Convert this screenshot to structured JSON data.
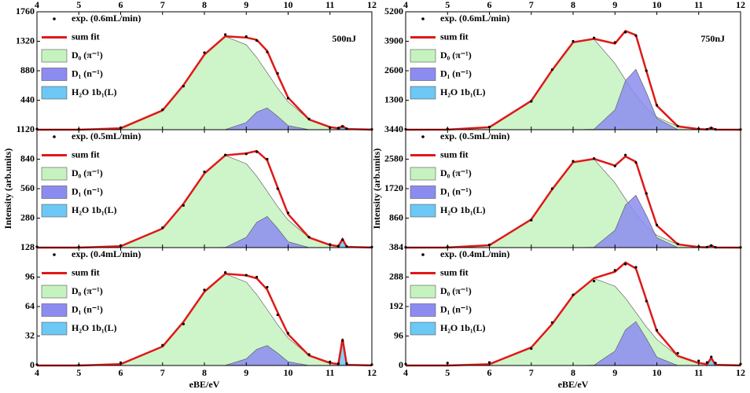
{
  "chart_data": [
    {
      "type": "spectrum",
      "annotation": "500nJ",
      "xtick_side": "top",
      "x": [
        4,
        5,
        6,
        7,
        7.5,
        8,
        8.5,
        9,
        9.25,
        9.5,
        9.75,
        10,
        10.5,
        11,
        11.2,
        11.3,
        11.4,
        12
      ],
      "xlim": [
        4,
        12
      ],
      "xticks": [
        4,
        5,
        6,
        7,
        8,
        9,
        10,
        11,
        12
      ],
      "ylim": [
        0,
        1760
      ],
      "yticks": [
        440,
        880,
        1320,
        1760
      ],
      "series": [
        {
          "name": "exp. (0.6mL/min)",
          "style": "points",
          "color": "#000000",
          "values": [
            10,
            5,
            30,
            300,
            650,
            1150,
            1420,
            1390,
            1330,
            1160,
            840,
            470,
            160,
            30,
            25,
            50,
            15,
            5
          ]
        },
        {
          "name": "sum fit",
          "style": "line",
          "color": "#e01818",
          "values": [
            0,
            0,
            21,
            288,
            664,
            1121,
            1394,
            1375,
            1342,
            1175,
            819,
            478,
            152,
            39,
            21,
            55,
            11,
            1
          ]
        },
        {
          "name": "D₀ (π⁻¹)",
          "style": "area",
          "color": "#c6f2c0",
          "values": [
            0,
            0,
            21,
            288,
            664,
            1121,
            1392,
            1268,
            1078,
            850,
            619,
            417,
            151,
            39,
            21,
            15,
            11,
            1
          ]
        },
        {
          "name": "D₁ (n⁻¹)",
          "style": "area",
          "color": "#8c8cf0",
          "values": [
            0,
            0,
            0,
            0,
            0,
            0,
            2,
            107,
            264,
            325,
            200,
            61,
            1,
            0,
            0,
            0,
            0,
            0
          ]
        },
        {
          "name": "H₂O 1b₁(L)",
          "style": "area",
          "color": "#6cc8f4",
          "values": [
            0,
            0,
            0,
            0,
            0,
            0,
            0,
            0,
            0,
            0,
            0,
            0,
            0,
            0,
            0,
            40,
            0,
            0
          ]
        }
      ]
    },
    {
      "type": "spectrum",
      "y_label": "Intensity (arb.units)",
      "x": [
        4,
        5,
        6,
        7,
        7.5,
        8,
        8.5,
        9,
        9.25,
        9.5,
        9.75,
        10,
        10.5,
        11,
        11.2,
        11.3,
        11.4,
        12
      ],
      "xlim": [
        4,
        12
      ],
      "xticks": [
        4,
        5,
        6,
        7,
        8,
        9,
        10,
        11,
        12
      ],
      "ylim": [
        0,
        1120
      ],
      "yticks": [
        280,
        560,
        840,
        1120
      ],
      "series": [
        {
          "name": "exp. (0.5mL/min)",
          "style": "points",
          "color": "#000000",
          "values": [
            8,
            4,
            20,
            190,
            400,
            720,
            880,
            890,
            910,
            840,
            560,
            330,
            100,
            30,
            15,
            75,
            10,
            5
          ]
        },
        {
          "name": "sum fit",
          "style": "line",
          "color": "#e01818",
          "values": [
            0,
            0,
            13,
            181,
            417,
            705,
            877,
            895,
            918,
            830,
            571,
            318,
            96,
            25,
            13,
            80,
            7,
            1
          ]
        },
        {
          "name": "D₀ (π⁻¹)",
          "style": "area",
          "color": "#c6f2c0",
          "values": [
            0,
            0,
            13,
            181,
            417,
            705,
            875,
            797,
            678,
            534,
            389,
            262,
            95,
            25,
            13,
            10,
            7,
            1
          ]
        },
        {
          "name": "D₁ (n⁻¹)",
          "style": "area",
          "color": "#8c8cf0",
          "values": [
            0,
            0,
            0,
            0,
            0,
            0,
            2,
            98,
            240,
            296,
            182,
            56,
            1,
            0,
            0,
            0,
            0,
            0
          ]
        },
        {
          "name": "H₂O 1b₁(L)",
          "style": "area",
          "color": "#6cc8f4",
          "values": [
            0,
            0,
            0,
            0,
            0,
            0,
            0,
            0,
            0,
            0,
            0,
            0,
            0,
            0,
            0,
            70,
            0,
            0
          ]
        }
      ]
    },
    {
      "type": "spectrum",
      "xtick_side": "bottom",
      "x_label": "eBE/eV",
      "x": [
        4,
        5,
        6,
        7,
        7.5,
        8,
        8.5,
        9,
        9.25,
        9.5,
        9.75,
        10,
        10.5,
        11,
        11.2,
        11.3,
        11.4,
        12
      ],
      "xlim": [
        4,
        12
      ],
      "xticks": [
        4,
        5,
        6,
        7,
        8,
        9,
        10,
        11,
        12
      ],
      "ylim": [
        0,
        128
      ],
      "yticks": [
        0,
        32,
        64,
        96,
        128
      ],
      "series": [
        {
          "name": "exp. (0.4mL/min)",
          "style": "points",
          "color": "#000000",
          "values": [
            1,
            0.5,
            3,
            22,
            45,
            82,
            101,
            98,
            96,
            85,
            55,
            35,
            12,
            4,
            2,
            27,
            2,
            1
          ]
        },
        {
          "name": "sum fit",
          "style": "line",
          "color": "#e01818",
          "values": [
            0,
            0,
            1.5,
            20.6,
            47.4,
            80.1,
            99.6,
            97.8,
            94.6,
            82.4,
            57.6,
            33.9,
            10.8,
            2.8,
            1.5,
            29.1,
            0.8,
            0.1
          ]
        },
        {
          "name": "D₀ (π⁻¹)",
          "style": "area",
          "color": "#c6f2c0",
          "values": [
            0,
            0,
            1.5,
            20.6,
            47.4,
            80.1,
            99.4,
            90.6,
            77,
            60.7,
            44.2,
            29.8,
            10.8,
            2.8,
            1.5,
            1.1,
            0.8,
            0.1
          ]
        },
        {
          "name": "D₁ (n⁻¹)",
          "style": "area",
          "color": "#8c8cf0",
          "values": [
            0,
            0,
            0,
            0,
            0,
            0,
            0.2,
            7.2,
            17.6,
            21.7,
            13.4,
            4.1,
            0,
            0,
            0,
            0,
            0,
            0
          ]
        },
        {
          "name": "H₂O 1b₁(L)",
          "style": "area",
          "color": "#6cc8f4",
          "values": [
            0,
            0,
            0,
            0,
            0,
            0,
            0,
            0,
            0,
            0,
            0,
            0,
            0,
            0,
            0,
            28,
            0,
            0
          ]
        }
      ]
    },
    {
      "type": "spectrum",
      "annotation": "750nJ",
      "xtick_side": "top",
      "x": [
        4,
        5,
        6,
        7,
        7.5,
        8,
        8.5,
        9,
        9.25,
        9.5,
        9.75,
        10,
        10.5,
        11,
        11.2,
        11.3,
        11.4,
        12
      ],
      "xlim": [
        4,
        12
      ],
      "xticks": [
        4,
        5,
        6,
        7,
        8,
        9,
        10,
        11,
        12
      ],
      "ylim": [
        0,
        5200
      ],
      "yticks": [
        1300,
        2600,
        3900,
        5200
      ],
      "series": [
        {
          "name": "exp. (0.6mL/min)",
          "style": "points",
          "color": "#000000",
          "values": [
            20,
            30,
            120,
            1250,
            2650,
            3900,
            4050,
            3850,
            4300,
            4150,
            2600,
            1080,
            160,
            40,
            20,
            80,
            15,
            10
          ]
        },
        {
          "name": "sum fit",
          "style": "line",
          "color": "#e01818",
          "values": [
            0,
            4,
            107,
            1271,
            2632,
            3854,
            4008,
            3797,
            4357,
            4171,
            2594,
            1056,
            149,
            25,
            12,
            88,
            4,
            0
          ]
        },
        {
          "name": "D₀ (π⁻¹)",
          "style": "area",
          "color": "#c6f2c0",
          "values": [
            0,
            4,
            107,
            1271,
            2632,
            3854,
            3989,
            2919,
            2194,
            1509,
            955,
            554,
            144,
            25,
            12,
            8,
            4,
            0
          ]
        },
        {
          "name": "D₁ (n⁻¹)",
          "style": "area",
          "color": "#8c8cf0",
          "values": [
            0,
            0,
            0,
            0,
            0,
            0,
            19,
            878,
            2163,
            2662,
            1639,
            502,
            5,
            0,
            0,
            0,
            0,
            0
          ]
        },
        {
          "name": "H₂O 1b₁(L)",
          "style": "area",
          "color": "#6cc8f4",
          "values": [
            0,
            0,
            0,
            0,
            0,
            0,
            0,
            0,
            0,
            0,
            0,
            0,
            0,
            0,
            0,
            80,
            0,
            0
          ]
        }
      ]
    },
    {
      "type": "spectrum",
      "y_label": "Intensity (arb.units)",
      "x": [
        4,
        5,
        6,
        7,
        7.5,
        8,
        8.5,
        9,
        9.25,
        9.5,
        9.75,
        10,
        10.5,
        11,
        11.2,
        11.3,
        11.4,
        12
      ],
      "xlim": [
        4,
        12
      ],
      "xticks": [
        4,
        5,
        6,
        7,
        8,
        9,
        10,
        11,
        12
      ],
      "ylim": [
        0,
        3440
      ],
      "yticks": [
        860,
        1720,
        2580,
        3440
      ],
      "series": [
        {
          "name": "exp. (0.5mL/min)",
          "style": "points",
          "color": "#000000",
          "values": [
            10,
            20,
            80,
            800,
            1720,
            2520,
            2600,
            2380,
            2700,
            2480,
            1580,
            660,
            110,
            30,
            15,
            60,
            10,
            5
          ]
        },
        {
          "name": "sum fit",
          "style": "line",
          "color": "#e01818",
          "values": [
            0,
            3,
            69,
            822,
            1701,
            2491,
            2589,
            2391,
            2660,
            2503,
            1558,
            646,
            96,
            16,
            8,
            65,
            3,
            0
          ]
        },
        {
          "name": "D₀ (π⁻¹)",
          "style": "area",
          "color": "#c6f2c0",
          "values": [
            0,
            3,
            69,
            822,
            1701,
            2491,
            2578,
            1887,
            1418,
            975,
            617,
            358,
            93,
            16,
            8,
            5,
            3,
            0
          ]
        },
        {
          "name": "D₁ (n⁻¹)",
          "style": "area",
          "color": "#8c8cf0",
          "values": [
            0,
            0,
            0,
            0,
            0,
            0,
            11,
            504,
            1242,
            1528,
            941,
            288,
            3,
            0,
            0,
            0,
            0,
            0
          ]
        },
        {
          "name": "H₂O 1b₁(L)",
          "style": "area",
          "color": "#6cc8f4",
          "values": [
            0,
            0,
            0,
            0,
            0,
            0,
            0,
            0,
            0,
            0,
            0,
            0,
            0,
            0,
            0,
            60,
            0,
            0
          ]
        }
      ]
    },
    {
      "type": "spectrum",
      "xtick_side": "bottom",
      "x_label": "eBE/eV",
      "x": [
        4,
        5,
        6,
        7,
        7.5,
        8,
        8.5,
        9,
        9.25,
        9.5,
        9.75,
        10,
        10.5,
        11,
        11.2,
        11.3,
        11.4,
        12
      ],
      "xlim": [
        4,
        12
      ],
      "xticks": [
        4,
        5,
        6,
        7,
        8,
        9,
        10,
        11,
        12
      ],
      "ylim": [
        0,
        384
      ],
      "yticks": [
        0,
        96,
        192,
        288,
        384
      ],
      "series": [
        {
          "name": "exp. (0.4mL/min)",
          "style": "points",
          "color": "#000000",
          "values": [
            5,
            8,
            10,
            55,
            140,
            230,
            275,
            310,
            330,
            320,
            210,
            115,
            40,
            15,
            10,
            28,
            8,
            5
          ]
        },
        {
          "name": "sum fit",
          "style": "line",
          "color": "#e01818",
          "values": [
            0,
            0,
            4.3,
            58.7,
            135.1,
            228.3,
            284.3,
            305.3,
            335.6,
            316,
            214,
            111.9,
            31.1,
            8,
            4.3,
            25.1,
            2.3,
            0.3
          ]
        },
        {
          "name": "D₀ (π⁻¹)",
          "style": "area",
          "color": "#c6f2c0",
          "values": [
            0,
            0,
            4.3,
            58.7,
            135.1,
            228.3,
            283.3,
            258.2,
            219.5,
            173,
            126,
            84.9,
            30.8,
            8,
            4.3,
            3.1,
            2.3,
            0.3
          ]
        },
        {
          "name": "D₁ (n⁻¹)",
          "style": "area",
          "color": "#8c8cf0",
          "values": [
            0,
            0,
            0,
            0,
            0,
            0,
            1,
            47.1,
            116.1,
            143,
            88,
            27,
            0.3,
            0,
            0,
            0,
            0,
            0
          ]
        },
        {
          "name": "H₂O 1b₁(L)",
          "style": "area",
          "color": "#6cc8f4",
          "values": [
            0,
            0,
            0,
            0,
            0,
            0,
            0,
            0,
            0,
            0,
            0,
            0,
            0,
            0,
            0,
            22,
            0,
            0
          ]
        }
      ]
    }
  ]
}
